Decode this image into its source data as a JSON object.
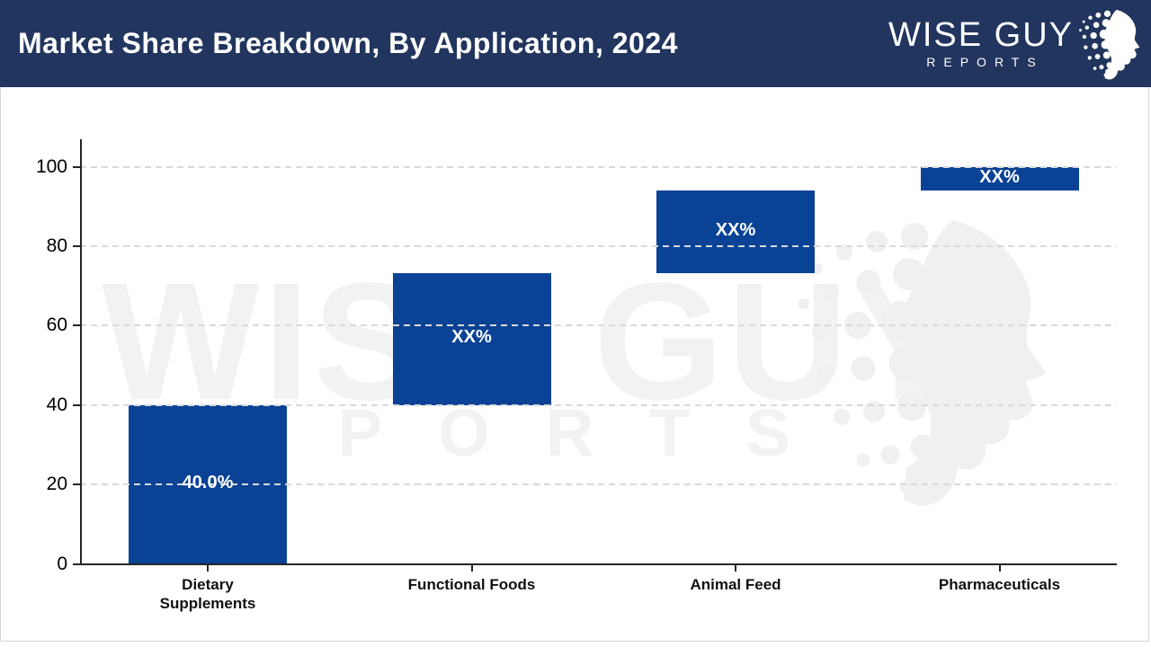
{
  "header": {
    "title": "Market Share Breakdown, By Application, 2024",
    "logo": {
      "line1": "WISE GUY",
      "line2": "REPORTS"
    }
  },
  "watermark": {
    "line1": "WISE GUY",
    "line2": "REPORTS"
  },
  "colors": {
    "header_background": "#21355e",
    "bar_fill": "#0a4296",
    "bar_label": "#ffffff",
    "gridline": "#d9d9db",
    "watermark": "#f2f2f4"
  },
  "chart_data": {
    "type": "bar",
    "subtype": "waterfall",
    "title": "Market Share Breakdown, By Application, 2024",
    "categories": [
      "Dietary\nSupplements",
      "Functional Foods",
      "Animal Feed",
      "Pharmaceuticals"
    ],
    "segments": [
      {
        "category": "Dietary Supplements",
        "start": 0,
        "end": 40,
        "label": "40.0%"
      },
      {
        "category": "Functional Foods",
        "start": 40,
        "end": 73.3,
        "label": "XX%"
      },
      {
        "category": "Animal Feed",
        "start": 73.3,
        "end": 94,
        "label": "XX%"
      },
      {
        "category": "Pharmaceuticals",
        "start": 94,
        "end": 100,
        "label": "XX%"
      }
    ],
    "xlabel": "",
    "ylabel": "",
    "yticks": [
      0,
      20,
      40,
      60,
      80,
      100
    ],
    "ylim": [
      0,
      107
    ],
    "grid": "horizontal-dashed",
    "gridlines_above_bars": true,
    "legend": false
  }
}
